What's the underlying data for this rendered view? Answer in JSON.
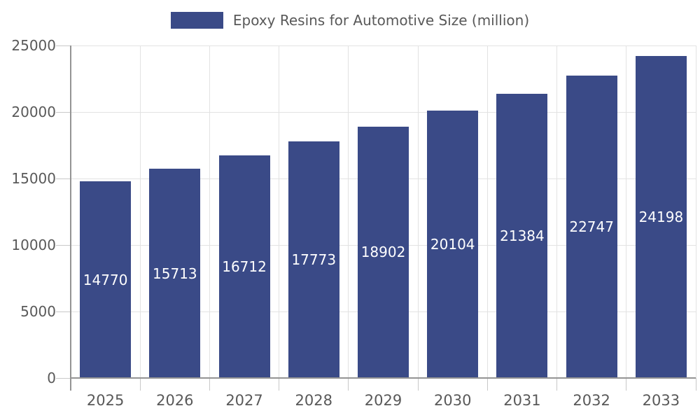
{
  "colors": {
    "bar": "#3A4A87",
    "grid": "#e2e2e2",
    "tick": "#c8c8c8",
    "axis": "#949494",
    "label": "#595959",
    "bar_label": "#ffffff",
    "background": "#ffffff"
  },
  "chart_data": {
    "type": "bar",
    "title": "Epoxy Resins for Automotive Size (million)",
    "legend": [
      "Epoxy Resins for Automotive Size (million)"
    ],
    "legend_position": "top-center",
    "categories": [
      "2025",
      "2026",
      "2027",
      "2028",
      "2029",
      "2030",
      "2031",
      "2032",
      "2033"
    ],
    "values": [
      14770,
      15713,
      16712,
      17773,
      18902,
      20104,
      21384,
      22747,
      24198
    ],
    "xlabel": "",
    "ylabel": "",
    "ylim": [
      0,
      25000
    ],
    "yticks": [
      0,
      5000,
      10000,
      15000,
      20000,
      25000
    ],
    "grid": true,
    "bar_value_labels": "inside-center-white"
  }
}
